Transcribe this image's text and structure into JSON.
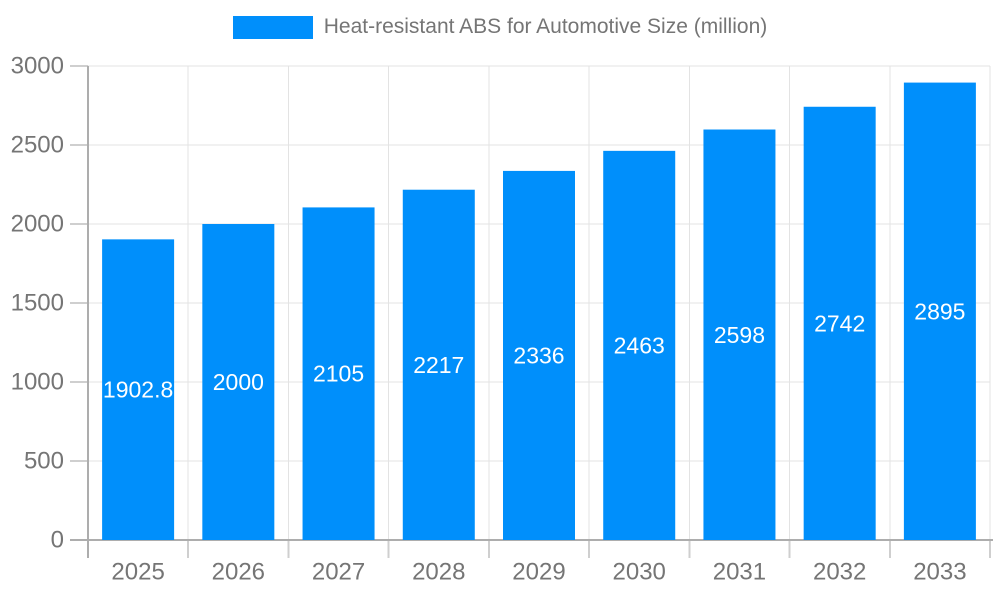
{
  "chart_data": {
    "type": "bar",
    "title": "Heat-resistant ABS for Automotive Size (million)",
    "legend": {
      "label": "Heat-resistant ABS for Automotive Size (million)",
      "position": "top"
    },
    "categories": [
      "2025",
      "2026",
      "2027",
      "2028",
      "2029",
      "2030",
      "2031",
      "2032",
      "2033"
    ],
    "series": [
      {
        "name": "Heat-resistant ABS for Automotive Size (million)",
        "values": [
          1902.8,
          2000,
          2105,
          2217,
          2336,
          2463,
          2598,
          2742,
          2895
        ]
      }
    ],
    "data_labels": [
      "1902.8",
      "2000",
      "2105",
      "2217",
      "2336",
      "2463",
      "2598",
      "2742",
      "2895"
    ],
    "xlabel": "",
    "ylabel": "",
    "ylim": [
      0,
      3000
    ],
    "yticks": [
      0,
      500,
      1000,
      1500,
      2000,
      2500,
      3000
    ],
    "grid": true,
    "colors": {
      "bar": "#008FFB",
      "bar_label": "#FFFFFF",
      "axis_text": "#757575",
      "grid_line": "#E3E3E3",
      "axis_line": "#ADADAD",
      "tick_line": "#CFCFCF",
      "background": "#FFFFFF"
    }
  }
}
